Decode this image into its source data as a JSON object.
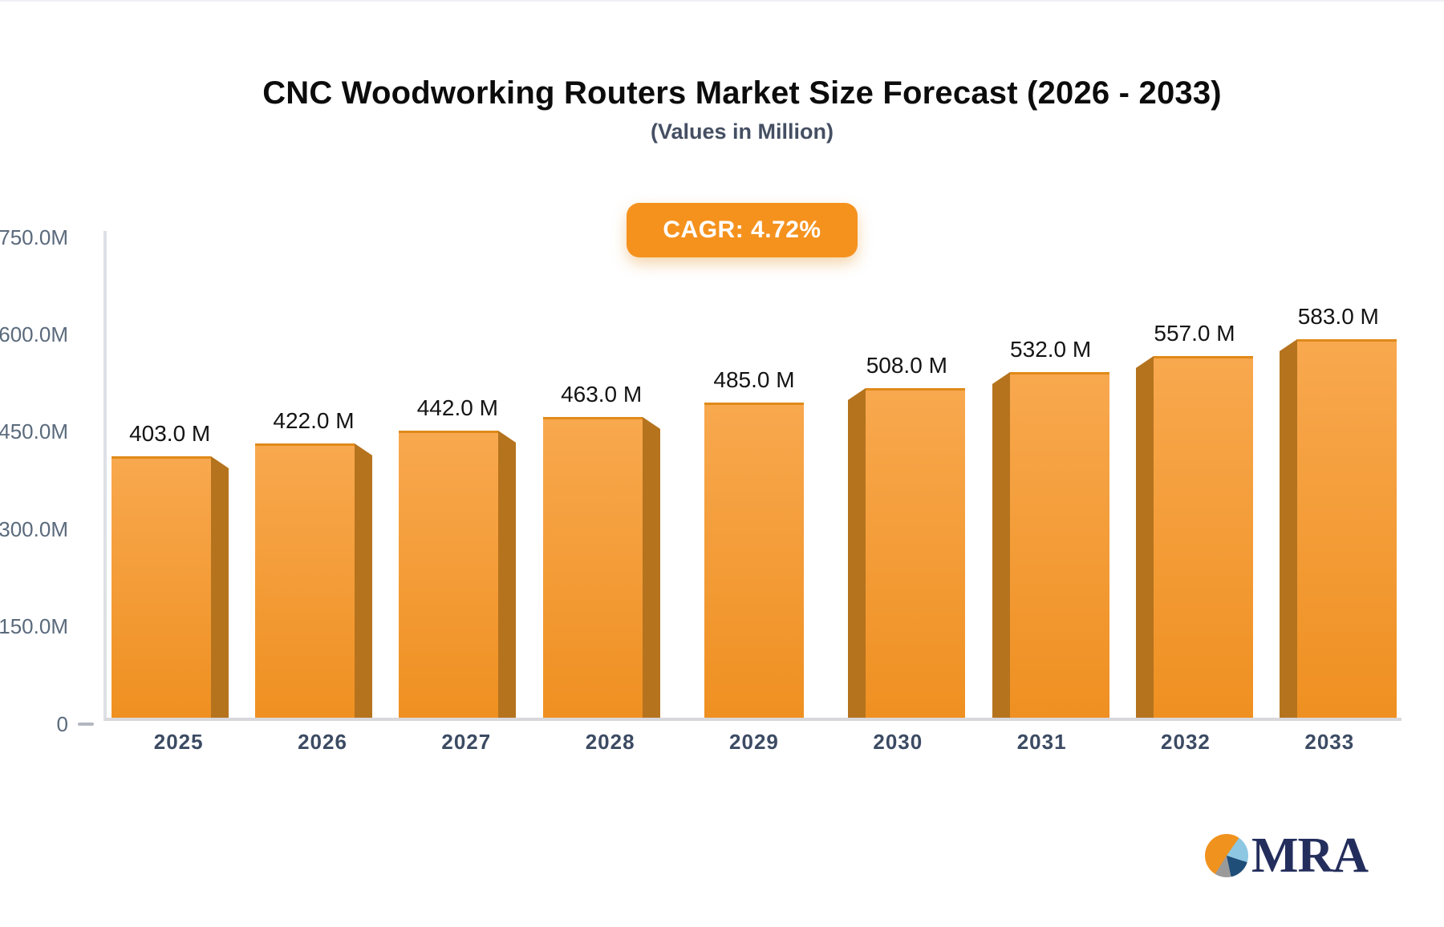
{
  "header": {
    "title": "CNC Woodworking Routers Market Size Forecast (2026 - 2033)",
    "subtitle": "(Values in Million)"
  },
  "badge": {
    "label": "CAGR: 4.72%",
    "bg": "#f5921e",
    "text_color": "#ffffff"
  },
  "chart_data": {
    "type": "bar",
    "title": "CNC Woodworking Routers Market Size Forecast (2026 - 2033)",
    "subtitle": "(Values in Million)",
    "categories": [
      "2025",
      "2026",
      "2027",
      "2028",
      "2029",
      "2030",
      "2031",
      "2032",
      "2033"
    ],
    "values": [
      403,
      422,
      442,
      463,
      485,
      508,
      532,
      557,
      583
    ],
    "value_labels": [
      "403.0 M",
      "422.0 M",
      "442.0 M",
      "463.0 M",
      "485.0 M",
      "508.0 M",
      "532.0 M",
      "557.0 M",
      "583.0 M"
    ],
    "ylim": [
      0,
      750
    ],
    "yticks": [
      {
        "label": "750.0M",
        "value": 750
      },
      {
        "label": "600.0M",
        "value": 600
      },
      {
        "label": "450.0M",
        "value": 450
      },
      {
        "label": "300.0M",
        "value": 300
      },
      {
        "label": "150.0M",
        "value": 150
      },
      {
        "label": "0",
        "value": 0,
        "dash": true
      }
    ],
    "grid": false,
    "legend": false,
    "annotations": [
      "CAGR: 4.72%"
    ],
    "bar_colors": {
      "front_top": "#f8a84e",
      "front_bottom": "#ef9021",
      "side": "#b5731e",
      "top_edge": "#e08a1a"
    }
  },
  "logo": {
    "text": "MRA",
    "pie_colors": {
      "orange": "#f0921e",
      "light_blue": "#8ec7e2",
      "navy": "#1f4e79",
      "gray": "#9a9a9a"
    }
  }
}
